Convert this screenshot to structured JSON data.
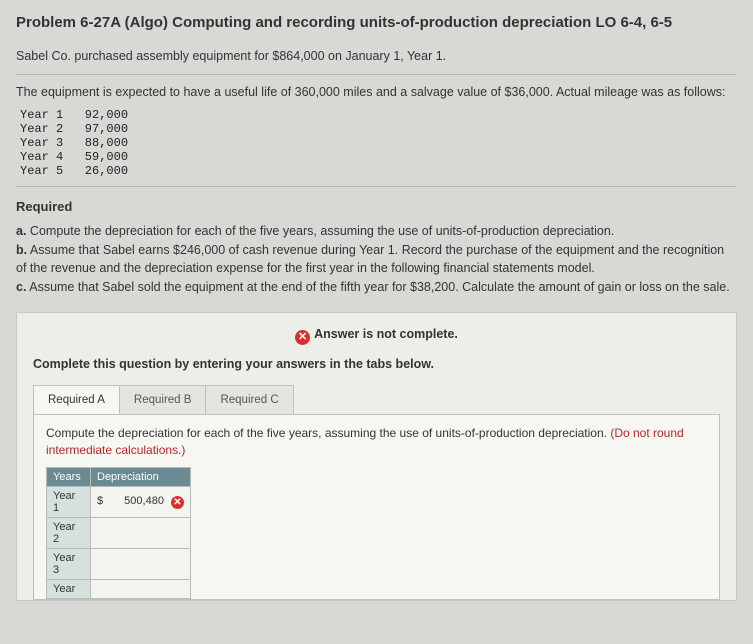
{
  "title": "Problem 6-27A (Algo) Computing and recording units-of-production depreciation LO 6-4, 6-5",
  "intro1": "Sabel Co. purchased assembly equipment for $864,000 on January 1, Year 1.",
  "intro2": "The equipment is expected to have a useful life of 360,000 miles and a salvage value of $36,000. Actual mileage was as follows:",
  "mileage_block": "Year 1   92,000\nYear 2   97,000\nYear 3   88,000\nYear 4   59,000\nYear 5   26,000",
  "required_heading": "Required",
  "req_a_label": "a.",
  "req_a": "Compute the depreciation for each of the five years, assuming the use of units-of-production depreciation.",
  "req_b_label": "b.",
  "req_b": "Assume that Sabel earns $246,000 of cash revenue during Year 1. Record the purchase of the equipment and the recognition of the revenue and the depreciation expense for the first year in the following financial statements model.",
  "req_c_label": "c.",
  "req_c": "Assume that Sabel sold the equipment at the end of the fifth year for $38,200. Calculate the amount of gain or loss on the sale.",
  "not_complete": "Answer is not complete.",
  "instruct": "Complete this question by entering your answers in the tabs below.",
  "tabs": {
    "a": "Required A",
    "b": "Required B",
    "c": "Required C"
  },
  "panel_instruction_main": "Compute the depreciation for each of the five years, assuming the use of units-of-production depreciation. ",
  "panel_instruction_note": "(Do not round intermediate calculations.)",
  "table": {
    "col_years": "Years",
    "col_dep": "Depreciation",
    "rows": {
      "y1": "Year 1",
      "y2": "Year 2",
      "y3": "Year 3",
      "y4": "Year"
    },
    "currency": "$",
    "val1": "500,480"
  },
  "colors": {
    "page_bg": "#d8d8d4",
    "text": "#333333",
    "rule": "#b8b8b4",
    "panel_bg": "#eceee8",
    "panel_border": "#c8c8c4",
    "tab_border": "#c0c0bc",
    "tab_bg": "#e4e4e0",
    "tab_active_bg": "#f6f6f2",
    "th_bg": "#6a8a94",
    "th_fg": "#ffffff",
    "years_cell_bg": "#d6e0de",
    "cell_bg": "#f2f4ee",
    "note_color": "#b02a28",
    "error_red": "#d9302c"
  }
}
